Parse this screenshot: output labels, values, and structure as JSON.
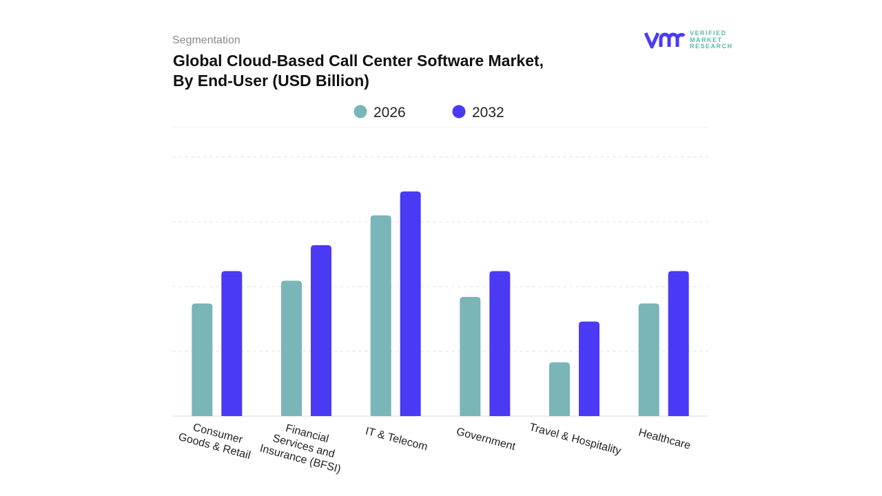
{
  "header": {
    "segment": "Segmentation",
    "title_line1": "Global Cloud-Based Call Center Software Market,",
    "title_line2": "By End-User (USD Billion)"
  },
  "logo": {
    "brand": "vmr",
    "line1": "VERIFIED",
    "line2": "MARKET",
    "line3": "RESEARCH"
  },
  "chart_data": {
    "type": "bar",
    "title": "Global Cloud-Based Call Center Software Market, By End-User (USD Billion)",
    "xlabel": "",
    "ylabel": "",
    "ylim": [
      0,
      4
    ],
    "grid": true,
    "legend_position": "top-center",
    "categories": [
      [
        "Consumer",
        "Goods & Retail"
      ],
      [
        "Financial",
        "Services and",
        "Insurance (BFSI)"
      ],
      [
        "IT & Telecom"
      ],
      [
        "Government"
      ],
      [
        "Travel & Hospitality"
      ],
      [
        "Healthcare"
      ]
    ],
    "series": [
      {
        "name": "2026",
        "color": "#7ab5b8",
        "values": [
          1.74,
          2.09,
          3.1,
          1.84,
          0.83,
          1.74
        ]
      },
      {
        "name": "2032",
        "color": "#4b3af5",
        "values": [
          2.24,
          2.64,
          3.47,
          2.24,
          1.46,
          2.24
        ]
      }
    ]
  }
}
